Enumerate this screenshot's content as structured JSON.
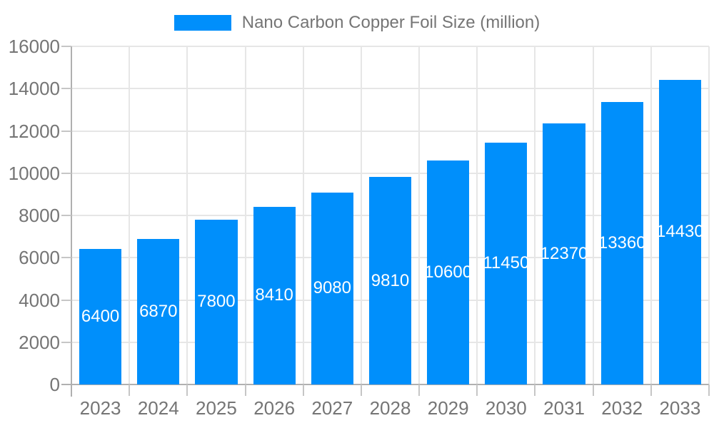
{
  "legend": {
    "label": "Nano Carbon Copper Foil Size (million)"
  },
  "chart_data": {
    "type": "bar",
    "title": "Nano Carbon Copper Foil Size (million)",
    "categories": [
      "2023",
      "2024",
      "2025",
      "2026",
      "2027",
      "2028",
      "2029",
      "2030",
      "2031",
      "2032",
      "2033"
    ],
    "values": [
      6400,
      6870,
      7800,
      8410,
      9080,
      9810,
      10600,
      11450,
      12370,
      13360,
      14430
    ],
    "xlabel": "",
    "ylabel": "",
    "ylim": [
      0,
      16000
    ],
    "y_ticks": [
      0,
      2000,
      4000,
      6000,
      8000,
      10000,
      12000,
      14000,
      16000
    ],
    "grid": true,
    "legend_position": "top",
    "value_labels_visible": true
  },
  "colors": {
    "bar": "#008FFB",
    "grid": "#e6e6e6",
    "axis": "#b0b0b0",
    "tick": "#c6c6c6",
    "label_text": "#757575",
    "value_label": "#ffffff",
    "background": "#ffffff"
  }
}
